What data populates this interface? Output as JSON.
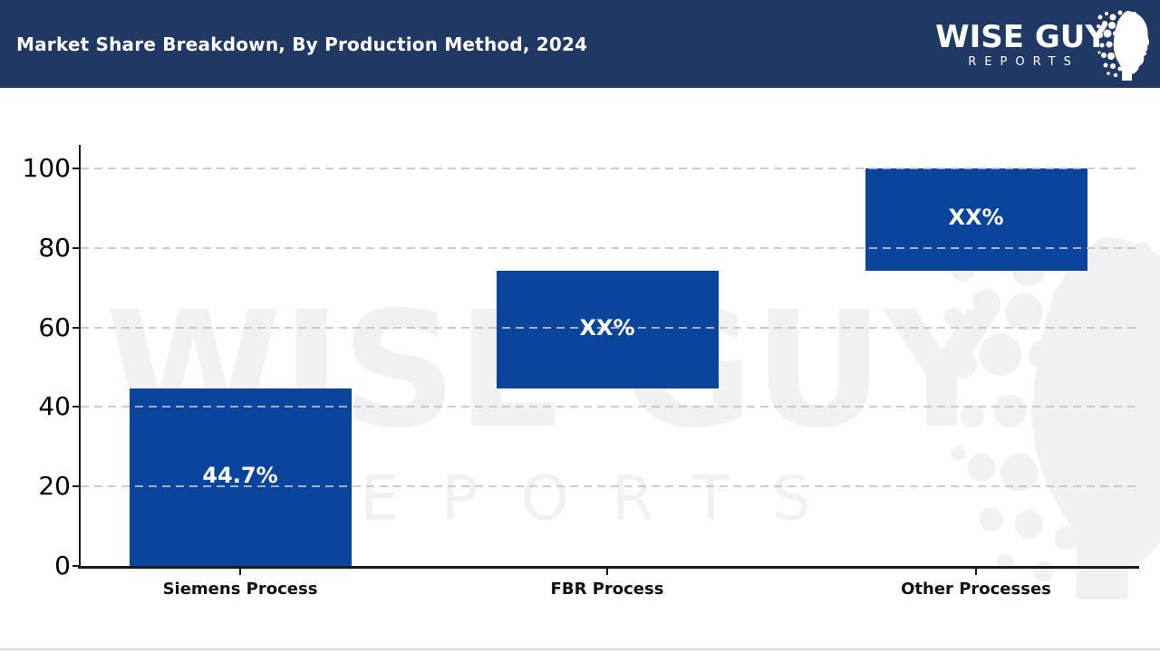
{
  "header": {
    "title": "Market Share Breakdown, By Production Method, 2024",
    "logo": {
      "title": "WISE GUY",
      "subtitle": "REPORTS"
    }
  },
  "watermark": {
    "title": "WISE GUY",
    "subtitle": "REPORTS"
  },
  "colors": {
    "header_bg": "#1F3864",
    "bar": "#0B449C",
    "grid": "#C9C9C9",
    "axis": "#1A1A1A",
    "watermark": "#F1F1F3",
    "value_label": "#FFFFFF"
  },
  "chart_data": {
    "type": "bar",
    "variant": "waterfall",
    "title": "Market Share Breakdown, By Production Method, 2024",
    "categories": [
      "Siemens Process",
      "FBR Process",
      "Other Processes"
    ],
    "bars": [
      {
        "category": "Siemens Process",
        "start": 0,
        "end": 44.7,
        "label": "44.7%"
      },
      {
        "category": "FBR Process",
        "start": 44.7,
        "end": 74.3,
        "label": "XX%"
      },
      {
        "category": "Other Processes",
        "start": 74.3,
        "end": 100,
        "label": "XX%"
      }
    ],
    "xlabel": "",
    "ylabel": "",
    "yticks": [
      0,
      20,
      40,
      60,
      80,
      100
    ],
    "ylim": [
      0,
      106
    ],
    "grid": "horizontal-dashed",
    "grid_above_bars": true,
    "legend": "none",
    "bar_color": "#0B449C",
    "value_label_color": "#FFFFFF"
  }
}
